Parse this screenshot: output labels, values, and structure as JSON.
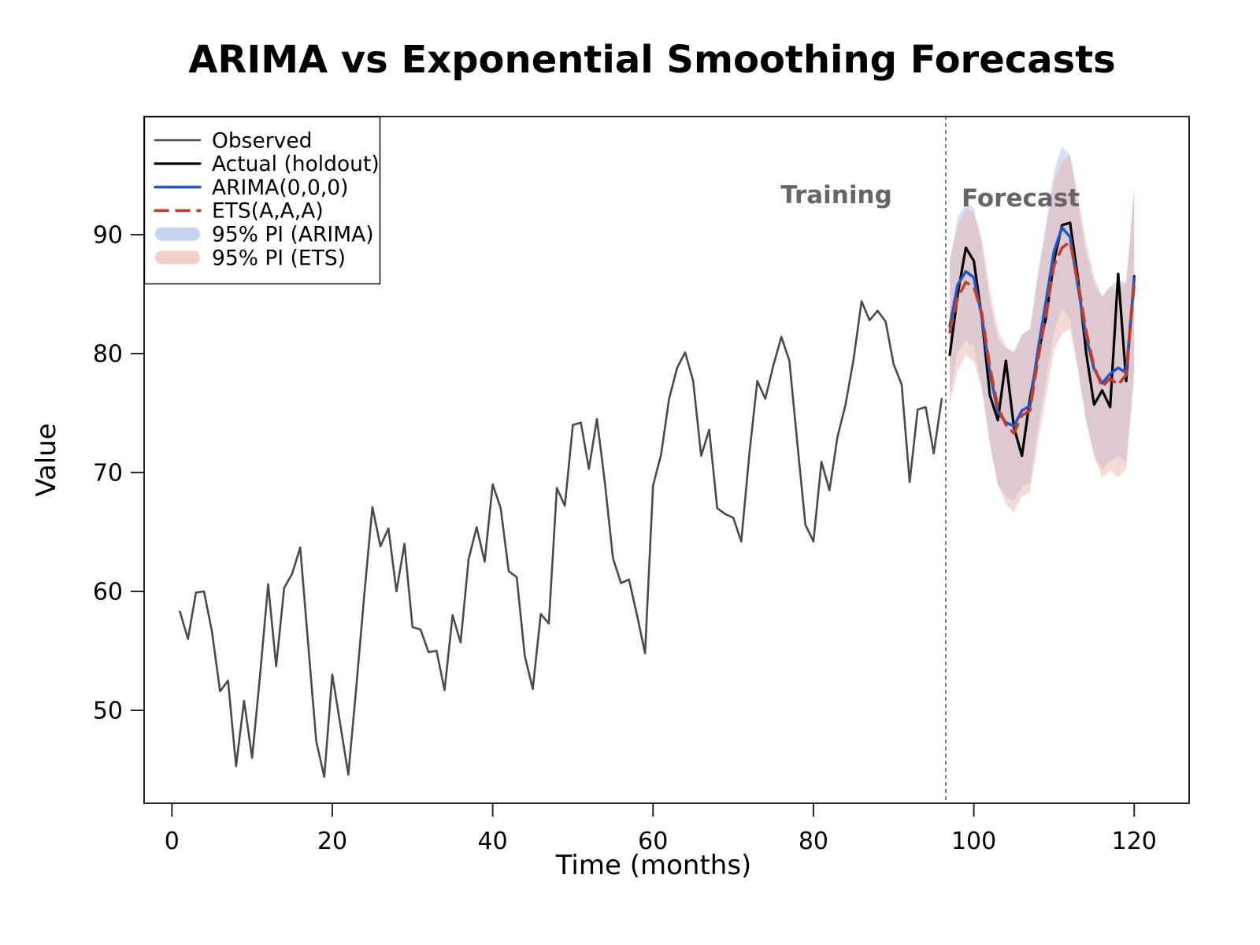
{
  "title": "ARIMA vs Exponential Smoothing Forecasts",
  "axes": {
    "xlabel": "Time (months)",
    "ylabel": "Value",
    "x_ticks": [
      0,
      20,
      40,
      60,
      80,
      100,
      120
    ],
    "y_ticks": [
      50,
      60,
      70,
      80,
      90
    ],
    "xlim": [
      -3.4,
      126.9
    ],
    "ylim": [
      42.2,
      99.9
    ]
  },
  "annotations": {
    "training": "Training",
    "forecast": "Forecast",
    "split_month": 96.5
  },
  "colors": {
    "observed": "#4A4A4A",
    "actual": "#000000",
    "arima": "#2456C4",
    "ets": "#C33D26",
    "arima_band": "#BDD2F0",
    "ets_band": "#F1C4BB",
    "separator": "#7F7F7F",
    "annotation_text": "#666666",
    "axis_box": "#262626"
  },
  "legend": {
    "entries": [
      {
        "label": "Observed",
        "swatch": "line",
        "color": "#4A4A4A",
        "dash": false,
        "width": 2.6
      },
      {
        "label": "Actual (holdout)",
        "swatch": "line",
        "color": "#000000",
        "dash": false,
        "width": 3.2
      },
      {
        "label": "ARIMA(0,0,0)",
        "swatch": "line",
        "color": "#2456C4",
        "dash": false,
        "width": 3.6
      },
      {
        "label": "ETS(A,A,A)",
        "swatch": "line",
        "color": "#C33D26",
        "dash": true,
        "width": 3.6
      },
      {
        "label": "95% PI (ARIMA)",
        "swatch": "band",
        "color": "#C3D4F0",
        "dash": false,
        "width": 0
      },
      {
        "label": "95% PI (ETS)",
        "swatch": "band",
        "color": "#F2CFC9",
        "dash": false,
        "width": 0
      }
    ]
  },
  "chart_data": {
    "type": "line",
    "title": "ARIMA vs Exponential Smoothing Forecasts",
    "xlabel": "Time (months)",
    "ylabel": "Value",
    "x_unit": "months",
    "seasonal_period": 12,
    "train_end_month": 96,
    "holdout_months": [
      97,
      120
    ],
    "series": [
      {
        "name": "Observed",
        "start_x": 1,
        "color": "#4A4A4A",
        "dash": false,
        "width": 2.6,
        "values": [
          58.3,
          56.0,
          59.9,
          60.0,
          56.6,
          51.6,
          52.5,
          45.3,
          50.8,
          46.0,
          53.0,
          60.6,
          53.7,
          60.3,
          61.5,
          63.7,
          55.5,
          47.4,
          44.4,
          53.0,
          48.8,
          44.6,
          52.0,
          59.8,
          67.1,
          63.8,
          65.3,
          60.0,
          64.0,
          57.0,
          56.8,
          54.9,
          55.0,
          51.7,
          58.0,
          55.7,
          62.7,
          65.4,
          62.5,
          69.0,
          67.0,
          61.7,
          61.2,
          54.6,
          51.8,
          58.1,
          57.3,
          68.7,
          67.2,
          74.0,
          74.2,
          70.3,
          74.5,
          69.1,
          62.8,
          60.7,
          61.0,
          58.0,
          54.8,
          68.9,
          71.5,
          76.2,
          78.8,
          80.1,
          77.7,
          71.4,
          73.6,
          67.0,
          66.5,
          66.2,
          64.2,
          71.5,
          77.7,
          76.2,
          79.0,
          81.4,
          79.4,
          72.4,
          65.6,
          64.2,
          70.9,
          68.5,
          73.0,
          75.7,
          79.5,
          84.4,
          82.8,
          83.6,
          82.7,
          79.1,
          77.4,
          69.2,
          75.3,
          75.5,
          71.6,
          76.2
        ]
      },
      {
        "name": "Actual (holdout)",
        "start_x": 97,
        "color": "#000000",
        "dash": false,
        "width": 3.2,
        "values": [
          79.9,
          85.0,
          88.9,
          87.8,
          83.0,
          76.5,
          74.4,
          79.4,
          73.8,
          71.4,
          76.2,
          79.9,
          83.0,
          87.8,
          90.8,
          91.0,
          86.3,
          80.1,
          75.7,
          76.9,
          75.5,
          86.7,
          77.7,
          86.5
        ]
      },
      {
        "name": "ARIMA(0,0,0)",
        "start_x": 97,
        "color": "#2456C4",
        "dash": false,
        "width": 3.6,
        "values": [
          82.3,
          85.8,
          86.9,
          86.4,
          83.1,
          78.4,
          75.1,
          74.2,
          73.9,
          75.2,
          75.6,
          80.3,
          84.4,
          88.6,
          90.6,
          89.8,
          85.6,
          81.4,
          78.7,
          77.5,
          78.3,
          78.8,
          78.4,
          86.3
        ]
      },
      {
        "name": "ETS(A,A,A)",
        "start_x": 97,
        "color": "#C33D26",
        "dash": true,
        "width": 3.6,
        "values": [
          81.8,
          84.7,
          86.0,
          85.6,
          83.4,
          78.9,
          75.5,
          74.0,
          73.3,
          74.8,
          75.2,
          79.5,
          83.3,
          87.4,
          88.9,
          89.4,
          86.0,
          81.9,
          78.9,
          77.2,
          77.9,
          77.4,
          78.2,
          85.8
        ]
      }
    ],
    "bands": [
      {
        "name": "95% PI (ARIMA)",
        "center": "ARIMA(0,0,0)",
        "halfwidth_start": 5.6,
        "halfwidth_end": 7.6,
        "color": "#9DB8E6",
        "opacity": 0.42
      },
      {
        "name": "95% PI (ETS)",
        "center": "ETS(A,A,A)",
        "halfwidth_start": 6.0,
        "halfwidth_end": 8.0,
        "color": "#E8A99C",
        "opacity": 0.42
      }
    ],
    "legend_position": "upper left",
    "grid": false
  }
}
